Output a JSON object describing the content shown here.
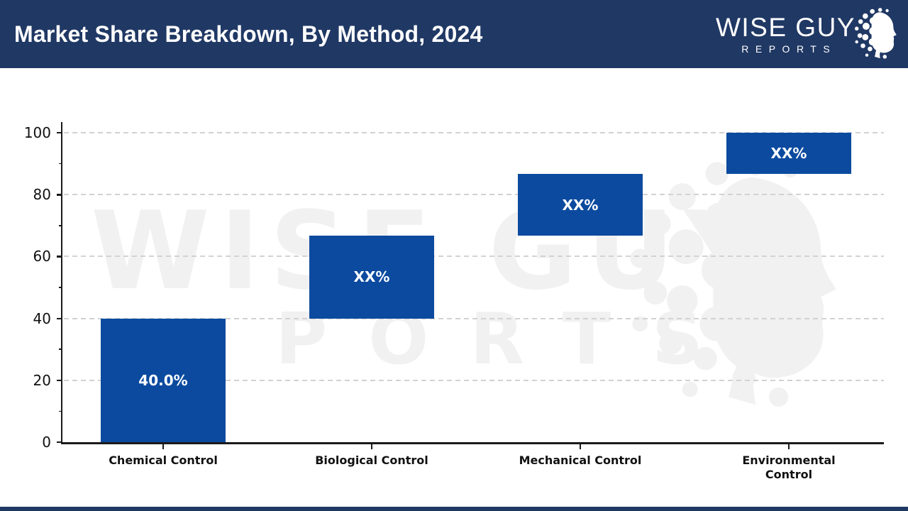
{
  "header": {
    "title": "Market Share Breakdown, By Method, 2024",
    "logo": {
      "line1": "WISE GUY",
      "line2": "REPORTS"
    }
  },
  "watermark": {
    "line1": "WISE GUY",
    "line2": "PORTS"
  },
  "colors": {
    "header_bg": "#203864",
    "footer_bg": "#203864",
    "bar_fill": "#0b4a9f",
    "bar_label": "#ffffff",
    "grid": "#d2d2d2",
    "axis": "#1a1a1a",
    "tick_label": "#111111",
    "watermark": "#f1f1f2"
  },
  "chart_data": {
    "type": "bar",
    "subtype": "waterfall",
    "title": "Market Share Breakdown, By Method, 2024",
    "xlabel": "",
    "ylabel": "",
    "ylim": [
      0,
      100
    ],
    "yticks": [
      0,
      20,
      40,
      60,
      80,
      100
    ],
    "grid": "horizontal-dashed",
    "legend": "none",
    "bars": [
      {
        "category": "Chemical Control",
        "start": 0,
        "end": 40,
        "label": "40.0%"
      },
      {
        "category": "Biological Control",
        "start": 40,
        "end": 66.7,
        "label": "XX%"
      },
      {
        "category": "Mechanical Control",
        "start": 66.7,
        "end": 86.7,
        "label": "XX%"
      },
      {
        "category": "Environmental\nControl",
        "start": 86.7,
        "end": 100,
        "label": "XX%"
      }
    ]
  }
}
